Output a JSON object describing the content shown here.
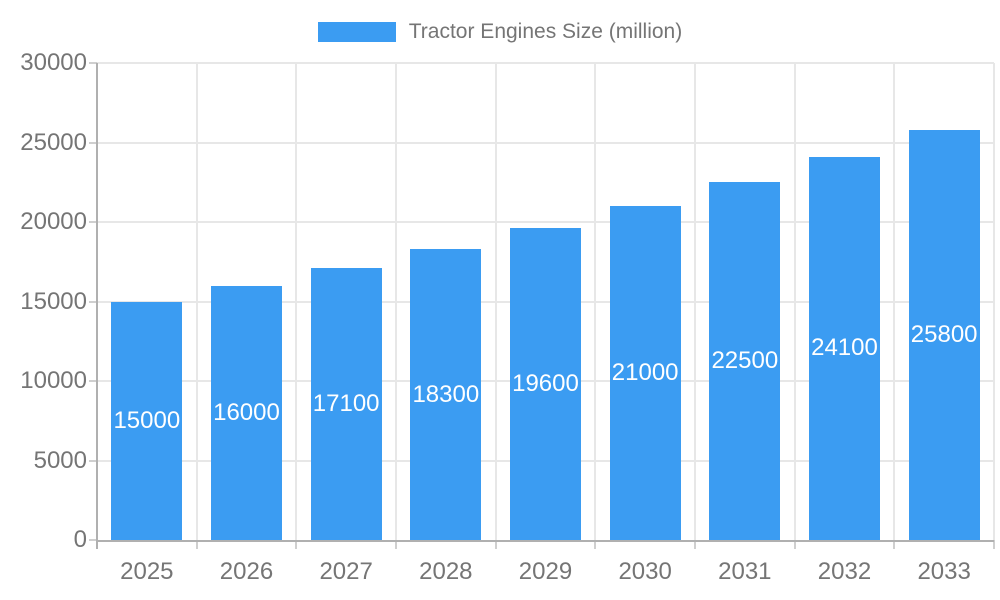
{
  "legend": {
    "label": "Tractor Engines Size (million)"
  },
  "chart_data": {
    "type": "bar",
    "title": "Tractor Engines Size (million)",
    "series_name": "Tractor Engines Size (million)",
    "categories": [
      "2025",
      "2026",
      "2027",
      "2028",
      "2029",
      "2030",
      "2031",
      "2032",
      "2033"
    ],
    "values": [
      15000,
      16000,
      17100,
      18300,
      19600,
      21000,
      22500,
      24100,
      25800
    ],
    "value_labels": [
      "15000",
      "16000",
      "17100",
      "18300",
      "19600",
      "21000",
      "22500",
      "24100",
      "25800"
    ],
    "xlabel": "",
    "ylabel": "",
    "ylim": [
      0,
      30000
    ],
    "ytick_step": 5000,
    "yticks": [
      0,
      5000,
      10000,
      15000,
      20000,
      25000,
      30000
    ],
    "ytick_labels": [
      "0",
      "5000",
      "10000",
      "15000",
      "20000",
      "25000",
      "30000"
    ],
    "grid": true,
    "legend_position": "top-center",
    "colors": {
      "bar": "#3b9cf2",
      "value_label": "#ffffff",
      "axis_text": "#757575",
      "gridline": "#e7e7e7",
      "axis_line": "#b0b0b0",
      "background": "#ffffff"
    }
  }
}
